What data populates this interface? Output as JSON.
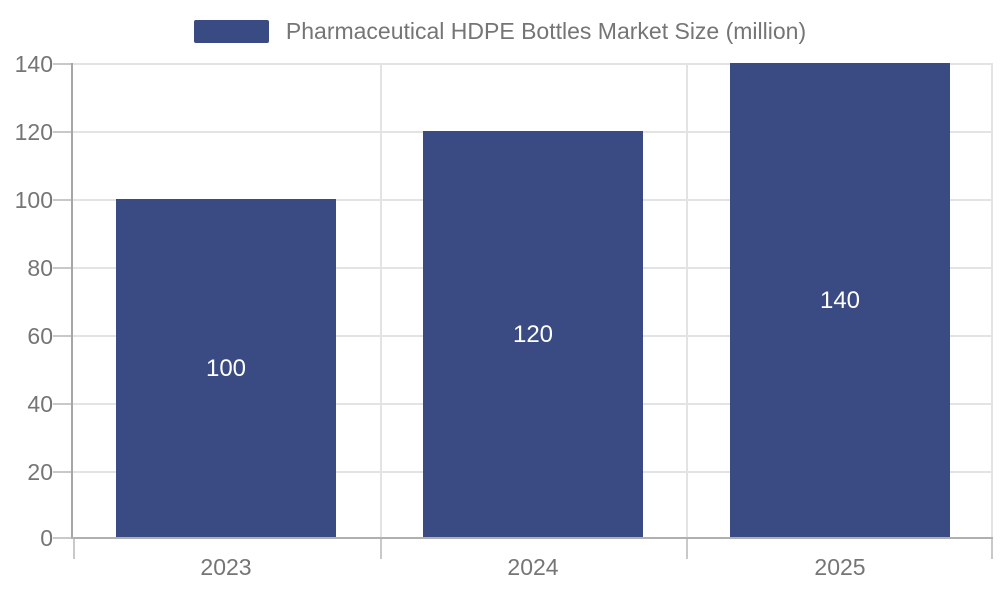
{
  "legend": {
    "label": "Pharmaceutical HDPE Bottles Market Size (million)",
    "swatch_color": "#3A4A82"
  },
  "chart_data": {
    "type": "bar",
    "title": "Pharmaceutical HDPE Bottles Market Size (million)",
    "categories": [
      "2023",
      "2024",
      "2025"
    ],
    "values": [
      100,
      120,
      140
    ],
    "data_labels": [
      "100",
      "120",
      "140"
    ],
    "xlabel": "",
    "ylabel": "",
    "ylim": [
      0,
      140
    ],
    "ytick_interval": 20,
    "ytick_labels": [
      "0",
      "20",
      "40",
      "60",
      "80",
      "100",
      "120",
      "140"
    ],
    "grid": true,
    "legend_position": "top-center",
    "colors": {
      "bar": "#3A4A82",
      "bar_label_text": "#FFFFFF",
      "axis_text": "#757575",
      "gridline": "#E3E3E3",
      "axis_line": "#ADADAD",
      "tick": "#C9C9C9"
    }
  }
}
